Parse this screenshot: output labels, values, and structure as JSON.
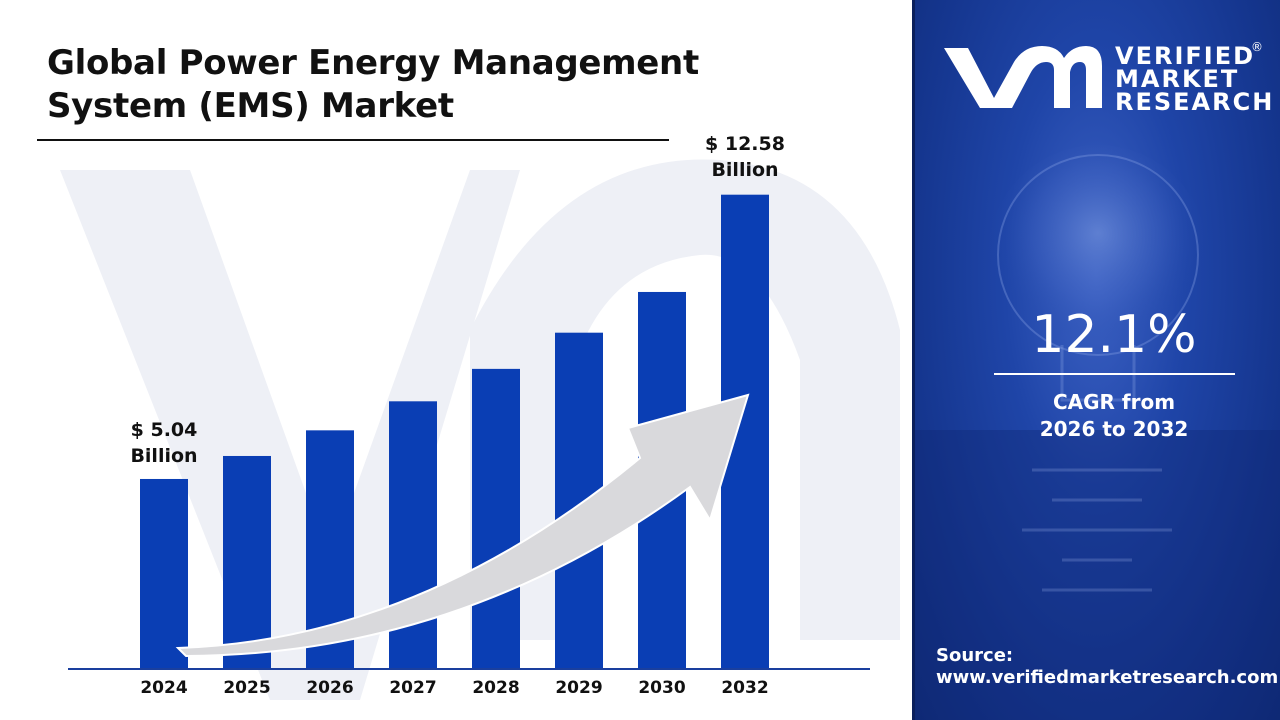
{
  "title": {
    "line1": "Global Power Energy Management",
    "line2": "System (EMS) Market"
  },
  "colors": {
    "bar": "#0a3eb4",
    "accent_panel": "#1a3f9e",
    "arrow": "#d9d9dc",
    "text": "#111111"
  },
  "chart_data": {
    "type": "bar",
    "categories": [
      "2024",
      "2025",
      "2026",
      "2027",
      "2028",
      "2029",
      "2030",
      "2032"
    ],
    "values": [
      5.04,
      5.65,
      6.33,
      7.1,
      7.96,
      8.92,
      10.0,
      12.58
    ],
    "unit": "Billion",
    "ylim": [
      0,
      13.5
    ],
    "grid": false,
    "legend": "none",
    "annotations": {
      "first": {
        "line1": "$ 5.04",
        "line2": "Billion"
      },
      "last": {
        "line1": "$ 12.58",
        "line2": "Billion"
      }
    },
    "trend_arrow": true
  },
  "brand": {
    "line1": "VERIFIED",
    "line2": "MARKET",
    "line3": "RESEARCH",
    "reg": "®"
  },
  "cagr": {
    "value": "12.1%",
    "label_line1": "CAGR from",
    "label_line2": "2026 to 2032"
  },
  "source": {
    "label": "Source:",
    "url": "www.verifiedmarketresearch.com"
  }
}
